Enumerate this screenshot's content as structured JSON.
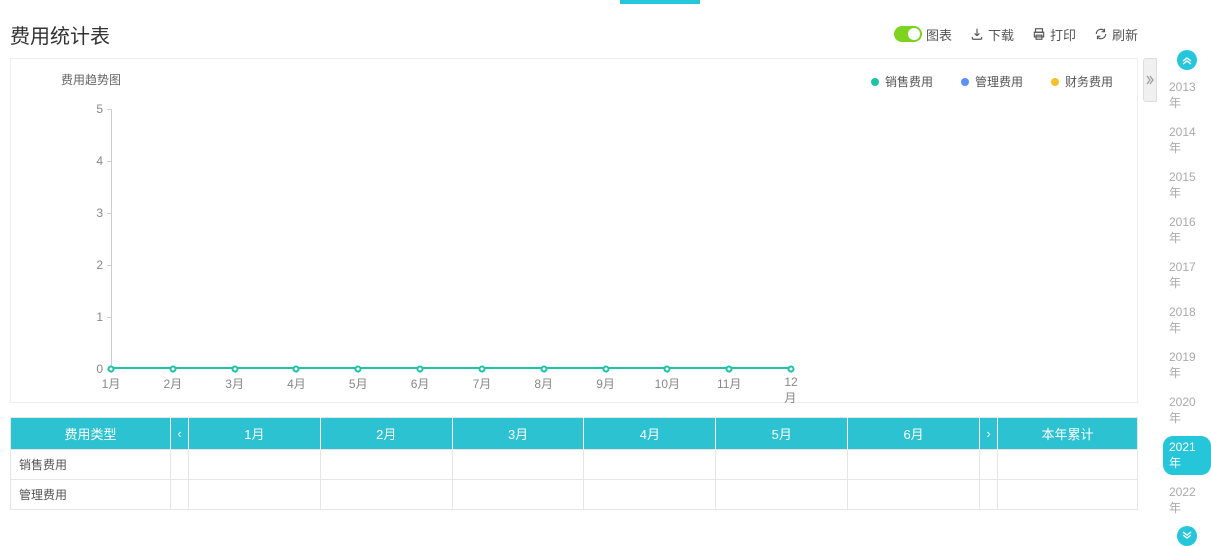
{
  "page": {
    "title": "费用统计表"
  },
  "actions": {
    "chart_toggle_label": "图表",
    "download_label": "下载",
    "print_label": "打印",
    "refresh_label": "刷新",
    "toggle_on": true,
    "toggle_color": "#7ed321"
  },
  "chart": {
    "type": "line",
    "title": "费用趋势图",
    "background_color": "#ffffff",
    "grid_color": "#cccccc",
    "axis_color": "#cccccc",
    "tick_fontsize": 12,
    "tick_color": "#888888",
    "x_labels": [
      "1月",
      "2月",
      "3月",
      "4月",
      "5月",
      "6月",
      "7月",
      "8月",
      "9月",
      "10月",
      "11月",
      "12月"
    ],
    "ylim": [
      0,
      5
    ],
    "ytick_step": 1,
    "y_ticks": [
      0,
      1,
      2,
      3,
      4,
      5
    ],
    "legend_position": "top-right",
    "series": [
      {
        "name": "销售费用",
        "color": "#1fc3a7",
        "values": [
          0,
          0,
          0,
          0,
          0,
          0,
          0,
          0,
          0,
          0,
          0,
          0
        ],
        "line_width": 2,
        "marker": "circle",
        "marker_size": 7
      },
      {
        "name": "管理费用",
        "color": "#5b8ff9",
        "values": [
          0,
          0,
          0,
          0,
          0,
          0,
          0,
          0,
          0,
          0,
          0,
          0
        ],
        "line_width": 2,
        "marker": "circle",
        "marker_size": 7
      },
      {
        "name": "财务费用",
        "color": "#f6c02d",
        "values": [
          0,
          0,
          0,
          0,
          0,
          0,
          0,
          0,
          0,
          0,
          0,
          0
        ],
        "line_width": 2,
        "marker": "circle",
        "marker_size": 7
      }
    ]
  },
  "table": {
    "header_bg": "#2cc2d1",
    "header_fg": "#ffffff",
    "border_color": "#e6e6e6",
    "fixed_col_label": "费用类型",
    "total_col_label": "本年累计",
    "month_columns": [
      "1月",
      "2月",
      "3月",
      "4月",
      "5月",
      "6月"
    ],
    "rows": [
      {
        "label": "销售费用",
        "cells": [
          "",
          "",
          "",
          "",
          "",
          ""
        ],
        "total": ""
      },
      {
        "label": "管理费用",
        "cells": [
          "",
          "",
          "",
          "",
          "",
          ""
        ],
        "total": ""
      }
    ]
  },
  "year_rail": {
    "accent_color": "#26c6da",
    "years": [
      "2013年",
      "2014年",
      "2015年",
      "2016年",
      "2017年",
      "2018年",
      "2019年",
      "2020年",
      "2021年",
      "2022年"
    ],
    "active": "2021年"
  }
}
